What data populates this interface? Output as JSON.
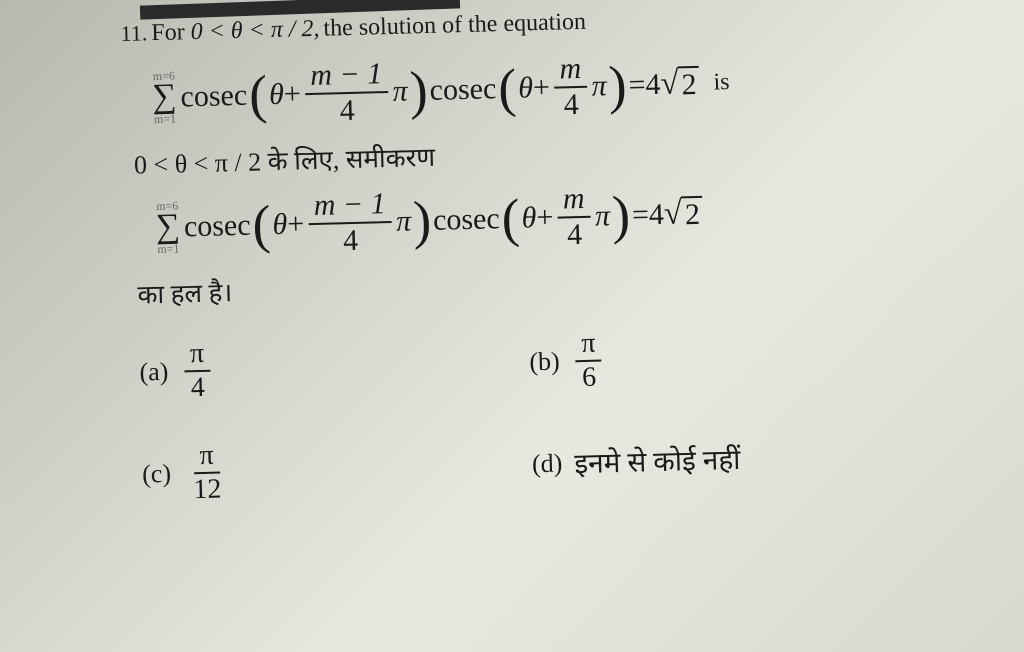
{
  "question": {
    "number": "11.",
    "text_en_part1": "For ",
    "condition": "0 < θ < π / 2,",
    "text_en_part2": " the solution of the equation",
    "sum_top": "m=6",
    "sum_bot": "m=1",
    "sigma": "∑",
    "func": "cosec",
    "theta": "θ",
    "plus": "+",
    "frac1_num": "m − 1",
    "frac1_den": "4",
    "pi": "π",
    "frac2_num": "m",
    "frac2_den": "4",
    "equals": "=",
    "rhs_coef": "4",
    "rhs_rad": "2",
    "is": "is",
    "hindi_cond": "0 < θ < π / 2 के लिए, समीकरण",
    "hindi_tail": "का हल है।"
  },
  "options": {
    "a_label": "(a)",
    "a_num": "π",
    "a_den": "4",
    "b_label": "(b)",
    "b_num": "π",
    "b_den": "6",
    "c_label": "(c)",
    "c_num": "π",
    "c_den": "12",
    "d_label": "(d)",
    "d_text": "इनमे से कोई नहीं"
  },
  "style": {
    "text_color": "#1a1a1a",
    "bg_gradient": [
      "#b8b8b0",
      "#e8e8e0"
    ],
    "question_fontsize": 24,
    "equation_fontsize": 30,
    "option_fontsize": 28,
    "rotation_deg": -1.5
  }
}
